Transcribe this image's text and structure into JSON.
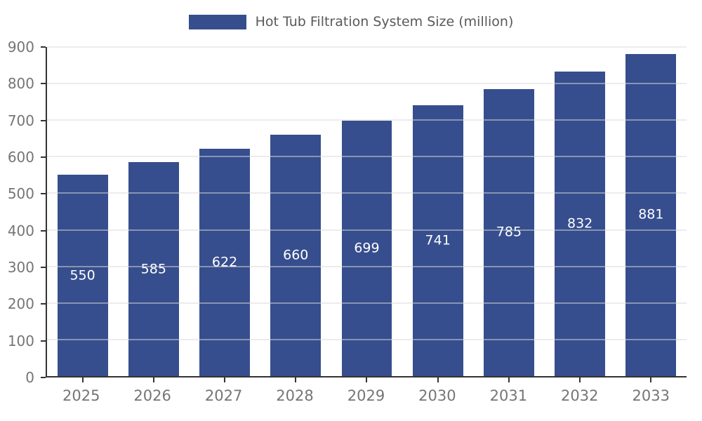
{
  "chart_data": {
    "type": "bar",
    "title": "",
    "legend": "Hot Tub Filtration System Size (million)",
    "categories": [
      "2025",
      "2026",
      "2027",
      "2028",
      "2029",
      "2030",
      "2031",
      "2032",
      "2033"
    ],
    "values": [
      550,
      585,
      622,
      660,
      699,
      741,
      785,
      832,
      881
    ],
    "xlabel": "",
    "ylabel": "",
    "ylim": [
      0,
      900
    ],
    "ytick_step": 100,
    "grid": true,
    "legend_position": "top",
    "bar_color": "#364E8D",
    "value_label_color": "#ffffff",
    "axis_text_color": "#757575",
    "legend_text_color": "#595959",
    "gridline_color": "#d9d9d9",
    "axis_line_color": "#333333"
  }
}
